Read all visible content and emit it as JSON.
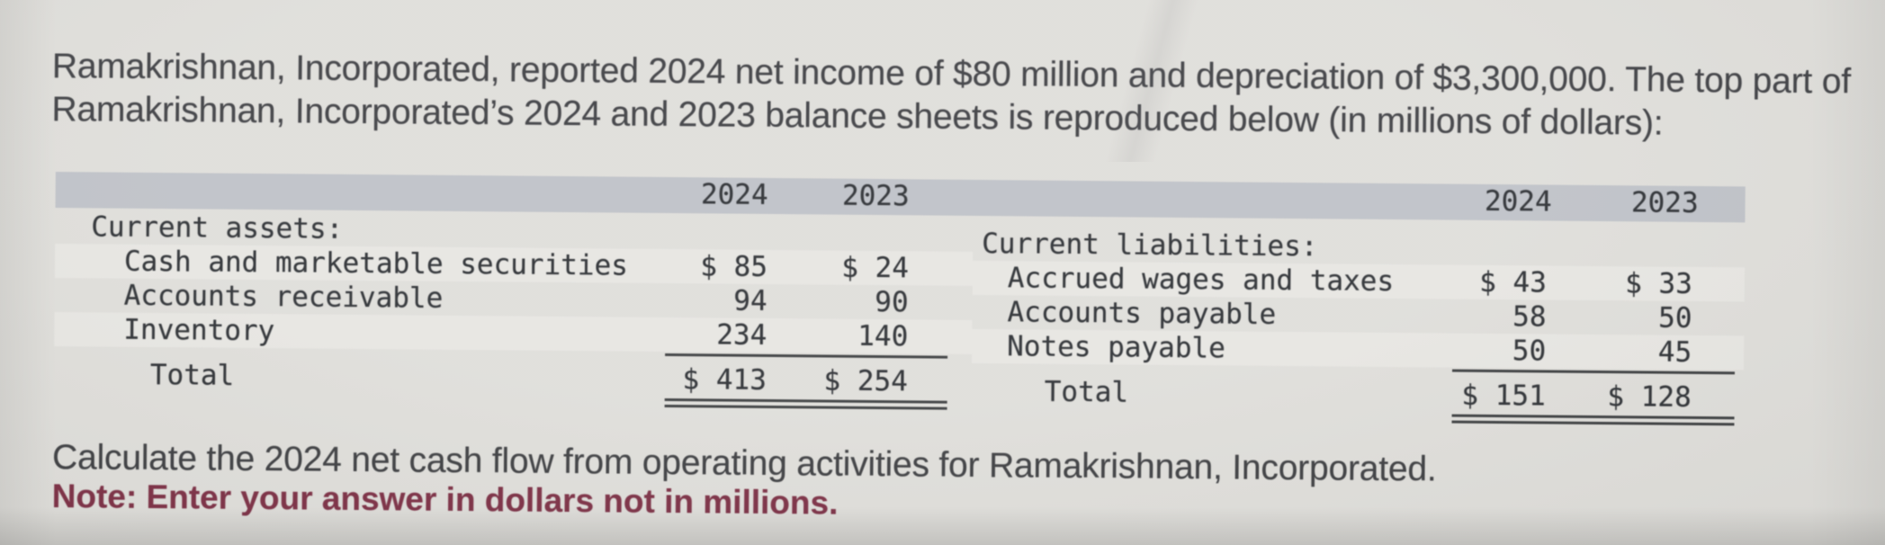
{
  "page": {
    "background_color": "#dfdeda",
    "header_band_color": "#bfc2c8",
    "row_stripe_color": "#e7e6e2",
    "body_text_color": "#404145",
    "table_text_color": "#2f3236",
    "note_text_color": "#7d3146"
  },
  "problem": {
    "intro_lines": [
      "Ramakrishnan, Incorporated, reported 2024 net income of $80 million and depreciation of $3,300,000. The top part of",
      "Ramakrishnan, Incorporated’s 2024 and 2023 balance sheets is reproduced below (in millions of dollars):"
    ],
    "question": "Calculate the 2024 net cash flow from operating activities for Ramakrishnan, Incorporated.",
    "note": "Note: Enter your answer in dollars not in millions."
  },
  "balance_sheet": {
    "year_columns": [
      "2024",
      "2023"
    ],
    "assets": {
      "section_label": "Current assets:",
      "rows": [
        {
          "label": "Cash and marketable securities",
          "v2024": "$ 85",
          "v2023": "$ 24"
        },
        {
          "label": "Accounts receivable",
          "v2024": "94",
          "v2023": "90"
        },
        {
          "label": "Inventory",
          "v2024": "234",
          "v2023": "140"
        }
      ],
      "total_label": "Total",
      "total_2024": "$ 413",
      "total_2023": "$ 254"
    },
    "liabilities": {
      "section_label": "Current liabilities:",
      "rows": [
        {
          "label": "Accrued wages and taxes",
          "v2024": "$ 43",
          "v2023": "$ 33"
        },
        {
          "label": "Accounts payable",
          "v2024": "58",
          "v2023": "50"
        },
        {
          "label": "Notes payable",
          "v2024": "50",
          "v2023": "45"
        }
      ],
      "total_label": "Total",
      "total_2024": "$ 151",
      "total_2023": "$ 128"
    }
  }
}
